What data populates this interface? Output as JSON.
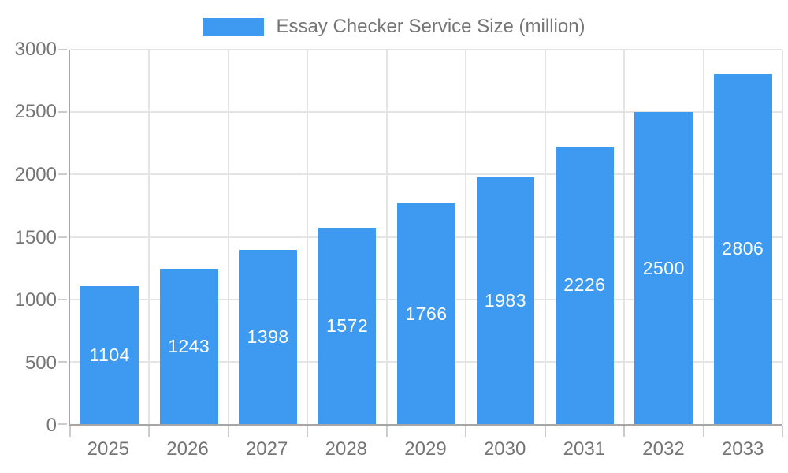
{
  "chart_data": {
    "type": "bar",
    "title": "",
    "legend": {
      "label": "Essay Checker Service Size (million)",
      "position": "top"
    },
    "categories": [
      "2025",
      "2026",
      "2027",
      "2028",
      "2029",
      "2030",
      "2031",
      "2032",
      "2033"
    ],
    "series": [
      {
        "name": "Essay Checker Service Size (million)",
        "values": [
          1104,
          1243,
          1398,
          1572,
          1766,
          1983,
          2226,
          2500,
          2806
        ]
      }
    ],
    "xlabel": "",
    "ylabel": "",
    "ylim": [
      0,
      3000
    ],
    "yticks": [
      0,
      500,
      1000,
      1500,
      2000,
      2500,
      3000
    ],
    "grid": true,
    "value_labels": "inside-center",
    "colors": {
      "bar": "#3E9AF0",
      "grid": "#E4E4E4",
      "axis_line": "#A6A6A6",
      "tick": "#CCCCCC",
      "axis_text": "#757575",
      "value_label": "#FFFFFF",
      "background": "#FFFFFF"
    }
  }
}
